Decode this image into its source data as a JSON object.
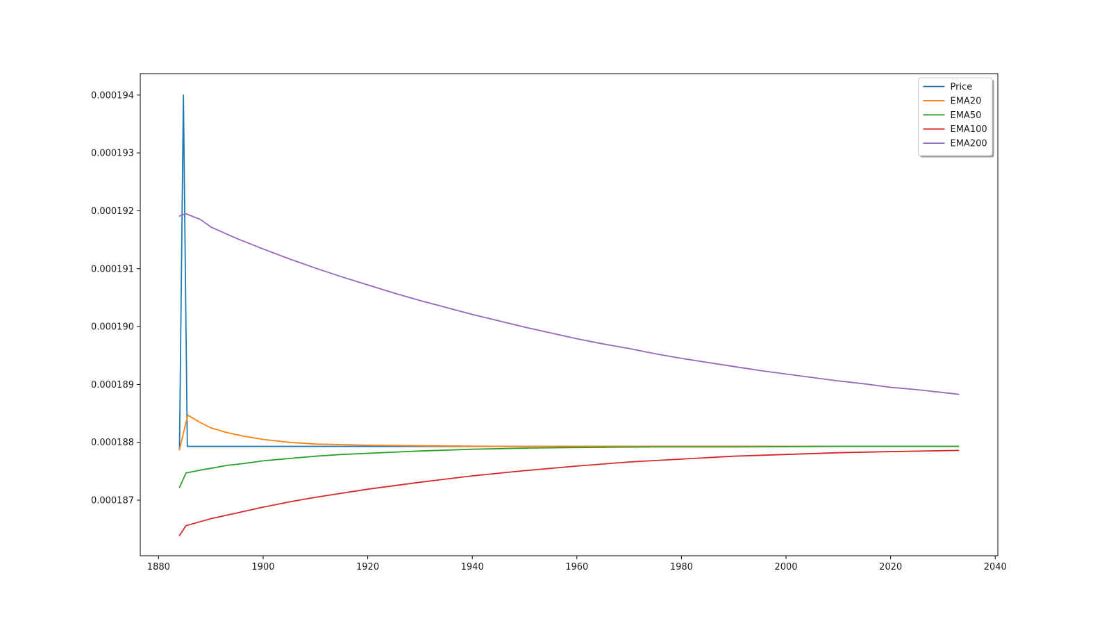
{
  "figure": {
    "background": "#ffffff",
    "spine_color": "#000000",
    "tick_color": "#000000",
    "text_color": "#1a1a1a"
  },
  "chart_data": {
    "type": "line",
    "title": "",
    "xlabel": "",
    "ylabel": "",
    "grid": false,
    "xlim": [
      1876.5,
      2040.5
    ],
    "ylim": [
      0.00018604,
      0.00019437
    ],
    "x_tick_values": [
      1880,
      1900,
      1920,
      1940,
      1960,
      1980,
      2000,
      2020,
      2040
    ],
    "x_tick_labels": [
      "1880",
      "1900",
      "1920",
      "1940",
      "1960",
      "1980",
      "2000",
      "2020",
      "2040"
    ],
    "y_tick_values": [
      0.000187,
      0.000188,
      0.000189,
      0.00019,
      0.000191,
      0.000192,
      0.000193,
      0.000194
    ],
    "y_tick_labels": [
      "0.000187",
      "0.000188",
      "0.000189",
      "0.000190",
      "0.000191",
      "0.000192",
      "0.000193",
      "0.000194"
    ],
    "legend": {
      "position": "upper right",
      "shadow": true,
      "entries": [
        "Price",
        "EMA20",
        "EMA50",
        "EMA100",
        "EMA200"
      ]
    },
    "series": [
      {
        "name": "Price",
        "color": "#1f77b4",
        "points": [
          [
            1884.0,
            0.00018787
          ],
          [
            1884.75,
            0.000194
          ],
          [
            1885.5,
            0.00018793
          ],
          [
            1890,
            0.00018793
          ],
          [
            1920,
            0.00018793
          ],
          [
            1950,
            0.00018793
          ],
          [
            1980,
            0.00018793
          ],
          [
            2010,
            0.00018793
          ],
          [
            2033,
            0.00018793
          ]
        ]
      },
      {
        "name": "EMA20",
        "color": "#ff7f0e",
        "points": [
          [
            1884.0,
            0.00018788
          ],
          [
            1885.6,
            0.00018847
          ],
          [
            1888,
            0.00018834
          ],
          [
            1890,
            0.00018825
          ],
          [
            1893,
            0.00018817
          ],
          [
            1896,
            0.00018811
          ],
          [
            1900,
            0.00018805
          ],
          [
            1905,
            0.000188
          ],
          [
            1910,
            0.00018797
          ],
          [
            1915,
            0.00018796
          ],
          [
            1920,
            0.00018795
          ],
          [
            1930,
            0.00018794
          ],
          [
            1945,
            0.00018793
          ],
          [
            1970,
            0.00018793
          ],
          [
            2000,
            0.00018793
          ],
          [
            2033,
            0.00018793
          ]
        ]
      },
      {
        "name": "EMA50",
        "color": "#2ca02c",
        "points": [
          [
            1884.0,
            0.00018722
          ],
          [
            1885.25,
            0.00018747
          ],
          [
            1888,
            0.00018752
          ],
          [
            1890,
            0.00018755
          ],
          [
            1893,
            0.0001876
          ],
          [
            1896,
            0.00018763
          ],
          [
            1900,
            0.00018768
          ],
          [
            1905,
            0.00018772
          ],
          [
            1910,
            0.00018776
          ],
          [
            1915,
            0.00018779
          ],
          [
            1920,
            0.00018781
          ],
          [
            1925,
            0.00018783
          ],
          [
            1930,
            0.00018785
          ],
          [
            1940,
            0.00018788
          ],
          [
            1950,
            0.0001879
          ],
          [
            1960,
            0.00018791
          ],
          [
            1975,
            0.00018792
          ],
          [
            1990,
            0.00018792
          ],
          [
            2010,
            0.00018793
          ],
          [
            2033,
            0.00018793
          ]
        ]
      },
      {
        "name": "EMA100",
        "color": "#d62728",
        "points": [
          [
            1884.0,
            0.00018639
          ],
          [
            1885.25,
            0.00018656
          ],
          [
            1890,
            0.00018668
          ],
          [
            1895,
            0.00018678
          ],
          [
            1900,
            0.00018688
          ],
          [
            1905,
            0.00018697
          ],
          [
            1910,
            0.00018705
          ],
          [
            1915,
            0.00018712
          ],
          [
            1920,
            0.00018719
          ],
          [
            1925,
            0.00018725
          ],
          [
            1930,
            0.00018731
          ],
          [
            1940,
            0.00018742
          ],
          [
            1950,
            0.00018751
          ],
          [
            1960,
            0.00018759
          ],
          [
            1970,
            0.00018766
          ],
          [
            1980,
            0.00018771
          ],
          [
            1990,
            0.00018776
          ],
          [
            2000,
            0.00018779
          ],
          [
            2010,
            0.00018782
          ],
          [
            2020,
            0.00018784
          ],
          [
            2033,
            0.00018786
          ]
        ]
      },
      {
        "name": "EMA200",
        "color": "#9467bd",
        "points": [
          [
            1884.0,
            0.00019191
          ],
          [
            1885.2,
            0.00019195
          ],
          [
            1888,
            0.00019185
          ],
          [
            1890,
            0.00019172
          ],
          [
            1895,
            0.00019152
          ],
          [
            1900,
            0.00019134
          ],
          [
            1905,
            0.00019117
          ],
          [
            1910,
            0.00019101
          ],
          [
            1915,
            0.00019086
          ],
          [
            1920,
            0.00019072
          ],
          [
            1925,
            0.00019058
          ],
          [
            1930,
            0.00019045
          ],
          [
            1935,
            0.00019033
          ],
          [
            1940,
            0.00019021
          ],
          [
            1945,
            0.0001901
          ],
          [
            1950,
            0.00018999
          ],
          [
            1955,
            0.00018989
          ],
          [
            1960,
            0.00018979
          ],
          [
            1965,
            0.0001897
          ],
          [
            1970,
            0.00018962
          ],
          [
            1975,
            0.00018953
          ],
          [
            1980,
            0.00018945
          ],
          [
            1985,
            0.00018938
          ],
          [
            1990,
            0.00018931
          ],
          [
            1995,
            0.00018924
          ],
          [
            2000,
            0.00018918
          ],
          [
            2005,
            0.00018912
          ],
          [
            2010,
            0.00018906
          ],
          [
            2015,
            0.00018901
          ],
          [
            2020,
            0.00018895
          ],
          [
            2025,
            0.00018891
          ],
          [
            2033,
            0.00018883
          ]
        ]
      }
    ]
  }
}
